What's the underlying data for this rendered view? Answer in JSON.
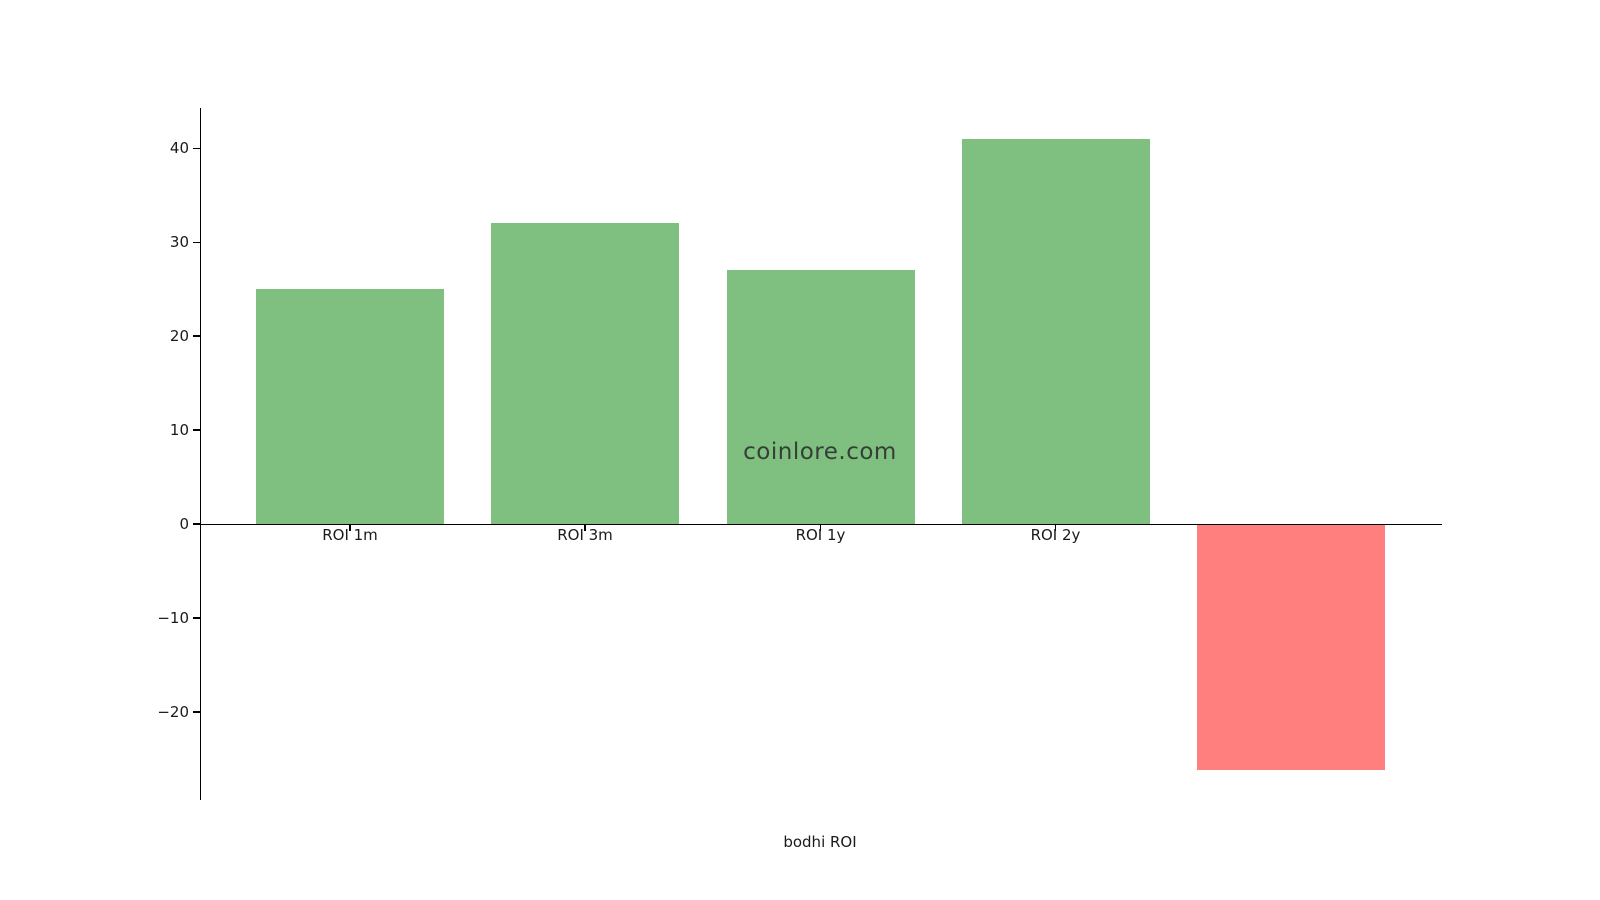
{
  "watermark": {
    "text": "coinlore.com"
  },
  "chart_data": {
    "type": "bar",
    "title": "",
    "xlabel": "bodhi ROI",
    "ylabel": "",
    "categories": [
      "ROI 1m",
      "ROI 3m",
      "ROI 1y",
      "ROI 2y",
      ""
    ],
    "values": [
      25,
      32,
      27,
      41,
      -26
    ],
    "ytick_values": [
      40,
      30,
      20,
      10,
      0,
      -10,
      -20
    ],
    "ytick_labels": [
      "40",
      "30",
      "20",
      "10",
      "0",
      "−10",
      "−20"
    ],
    "ylim": [
      -29.4,
      44.3
    ],
    "grid": false,
    "legend": false,
    "colors": {
      "positive": "#7fbf7f",
      "negative": "#ff7f7f",
      "axis": "#000000",
      "tick_text": "#1a1a1a",
      "watermark_text": "#363f37"
    }
  }
}
